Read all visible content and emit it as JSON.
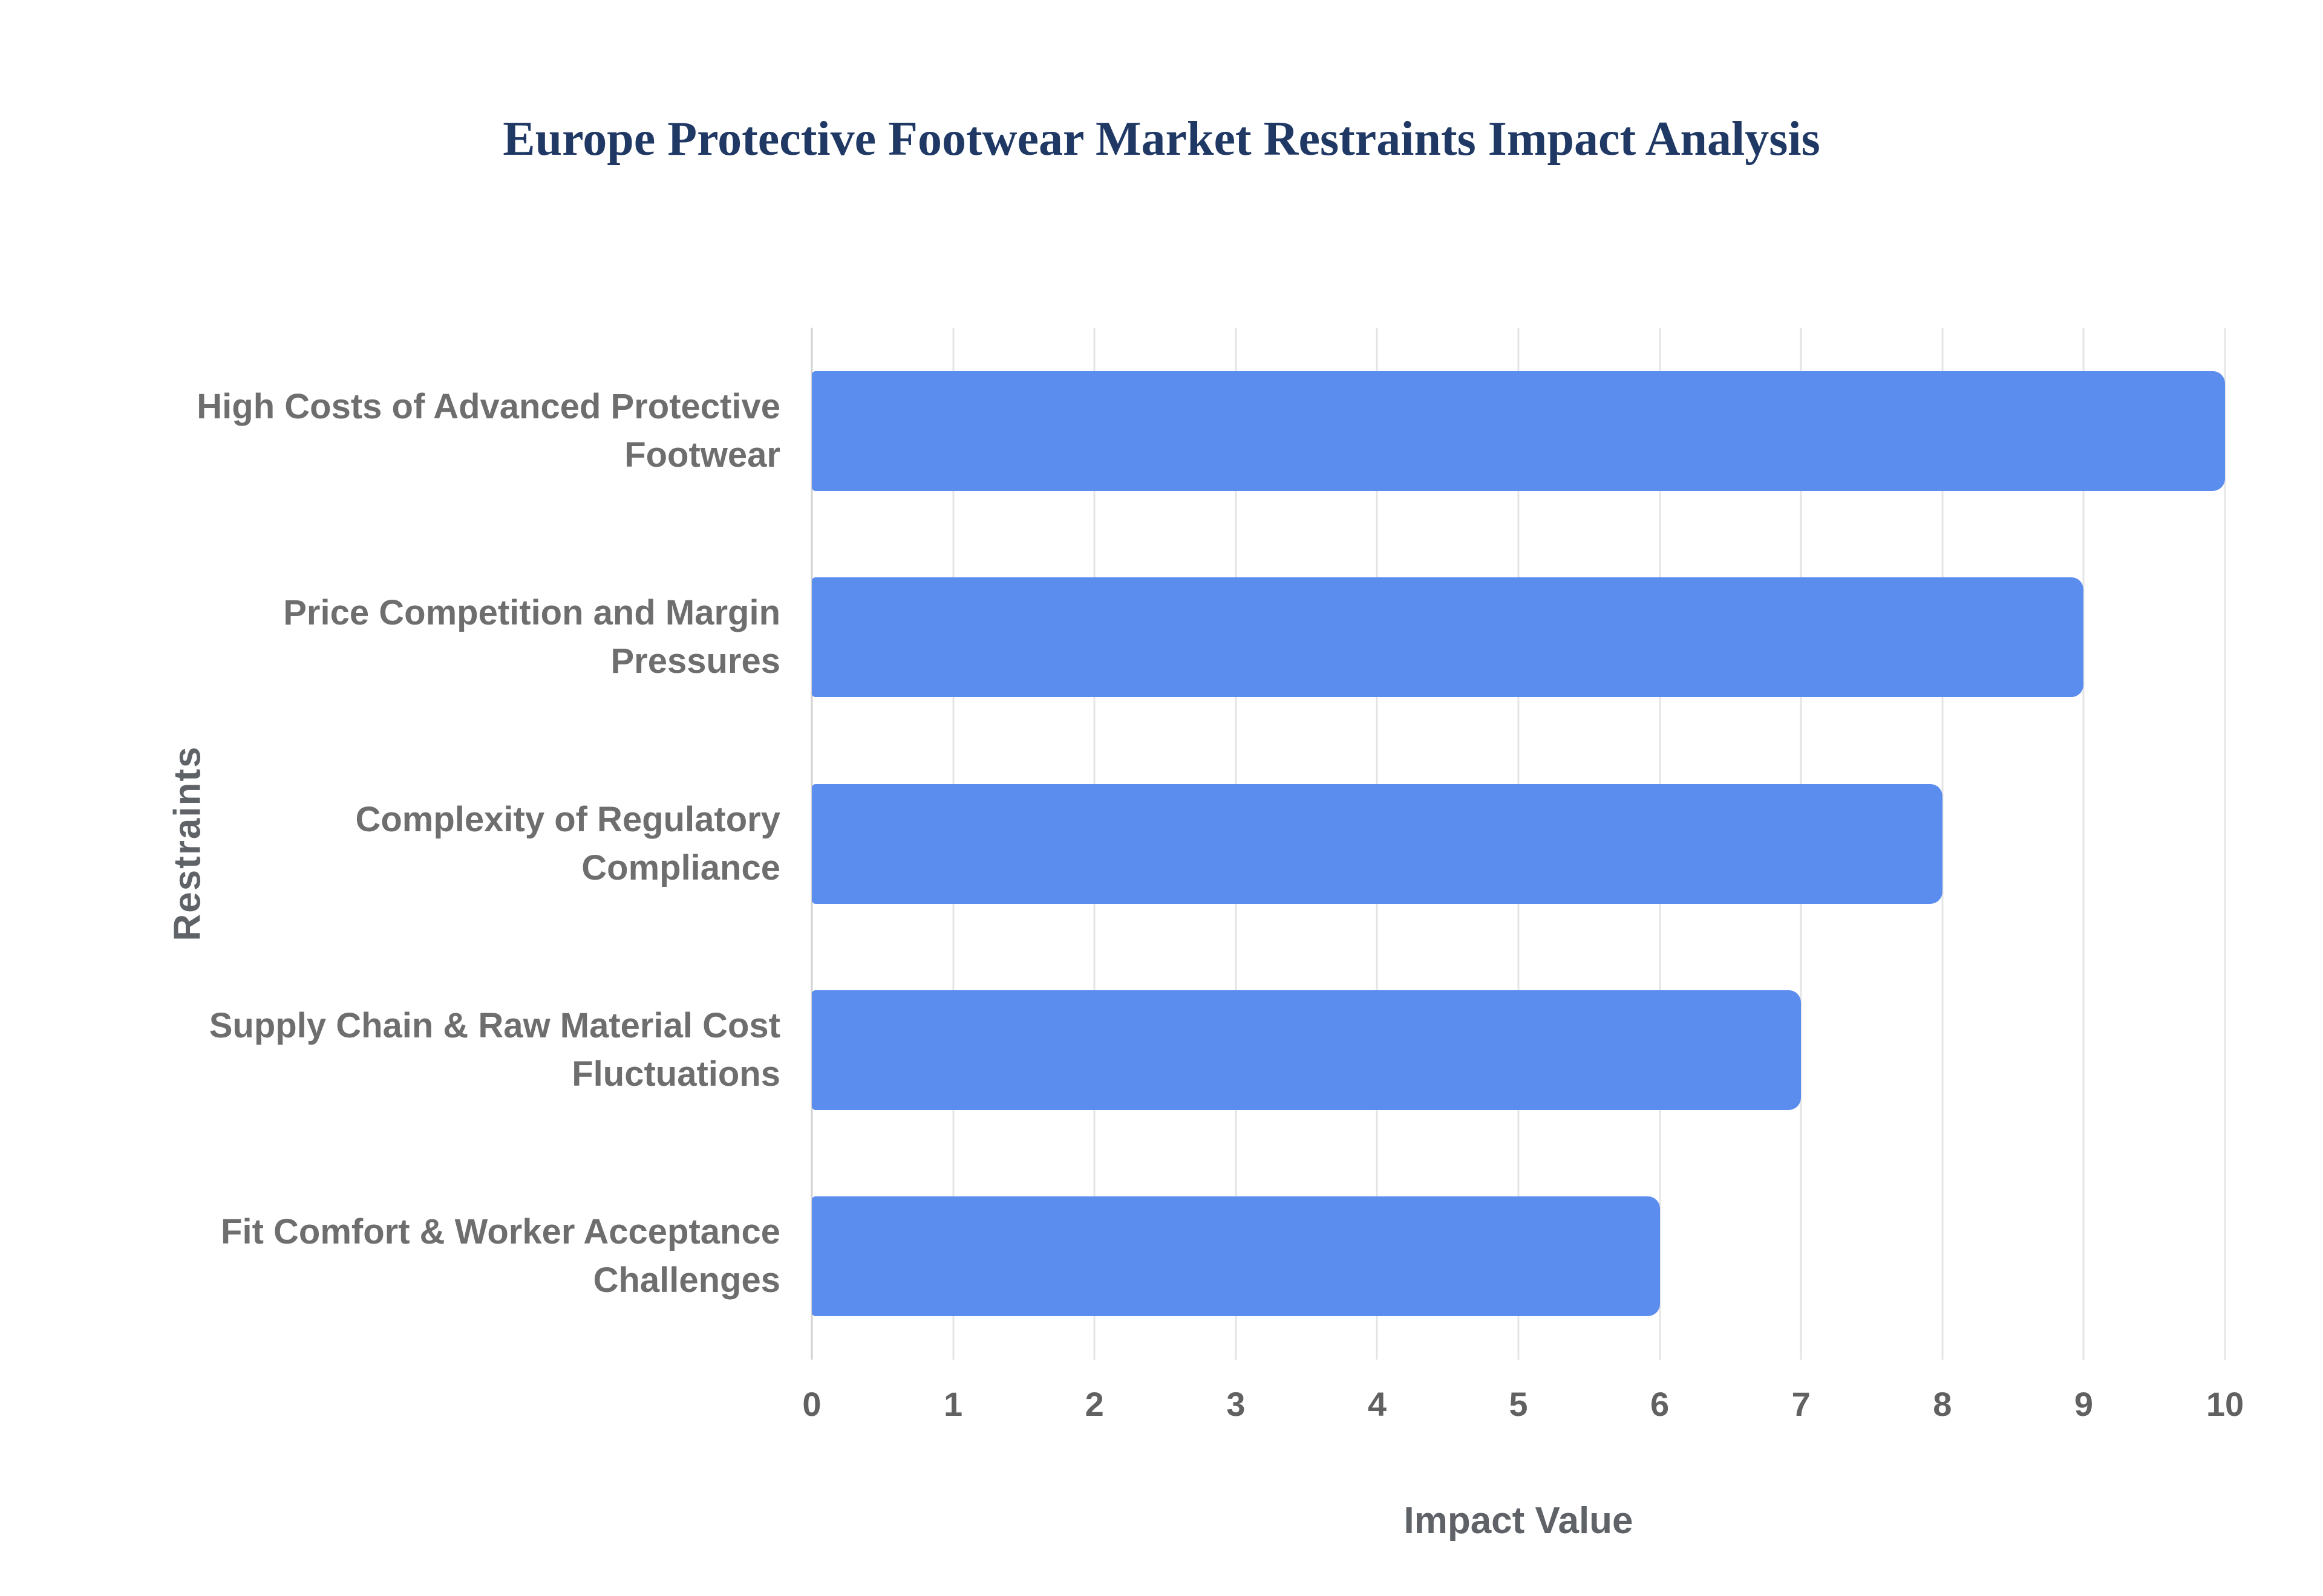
{
  "page": {
    "background": "#ffffff"
  },
  "chart_data": {
    "type": "bar",
    "orientation": "horizontal",
    "title": "Europe Protective Footwear Market Restraints Impact Analysis",
    "categories": [
      "High Costs of Advanced Protective Footwear",
      "Price Competition and Margin Pressures",
      "Complexity of Regulatory Compliance",
      "Supply Chain & Raw Material Cost Fluctuations",
      "Fit Comfort & Worker Acceptance Challenges"
    ],
    "values": [
      10,
      9,
      8,
      7,
      6
    ],
    "xlabel": "Impact Value",
    "ylabel": "Restraints",
    "xlim": [
      0,
      10
    ],
    "xticks": [
      0,
      1,
      2,
      3,
      4,
      5,
      6,
      7,
      8,
      9,
      10
    ],
    "grid": true,
    "legend": "none",
    "colors": {
      "bar": "#5b8def",
      "gridline": "#e4e4e4",
      "axis_line": "#d2d2d2",
      "title": "#1f3864",
      "category_label": "#6e6e6e",
      "tick_label": "#616161",
      "axis_title": "#5f6368"
    }
  }
}
